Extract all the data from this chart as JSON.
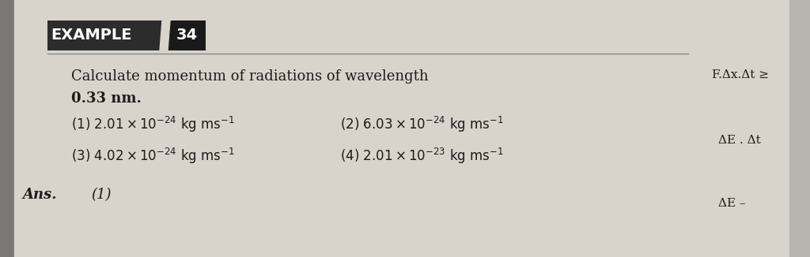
{
  "bg_color": "#c8c5be",
  "page_color": "#dedad4",
  "title_example": "EXAMPLE",
  "title_number": "34",
  "question_line1": "Calculate momentum of radiations of wavelength",
  "question_line2": "0.33 nm.",
  "opt1": "(1) 2.01 × 10$^{-24}$ kg ms$^{-1}$",
  "opt2": "(2) 6.03 × 10$^{-24}$ kg ms$^{-1}$",
  "opt3": "(3) 4.02 × 10$^{-24}$ kg ms$^{-1}$",
  "opt4": "(4) 2.01 × 10$^{-23}$ kg ms$^{-1}$",
  "ans_label": "Ans.",
  "ans_value": "(1)",
  "right_text_top": "F.Δx.Δt ≥",
  "right_text_mid": "ΔE . Δt",
  "right_text_bot": "ΔE –",
  "font_color": "#1c1c1c",
  "example_bg": "#2a2a2a",
  "number_bg": "#1a1a1a",
  "line_color": "#555555",
  "left_bar_color": "#888888",
  "shadow_color": "#aaa9a5"
}
